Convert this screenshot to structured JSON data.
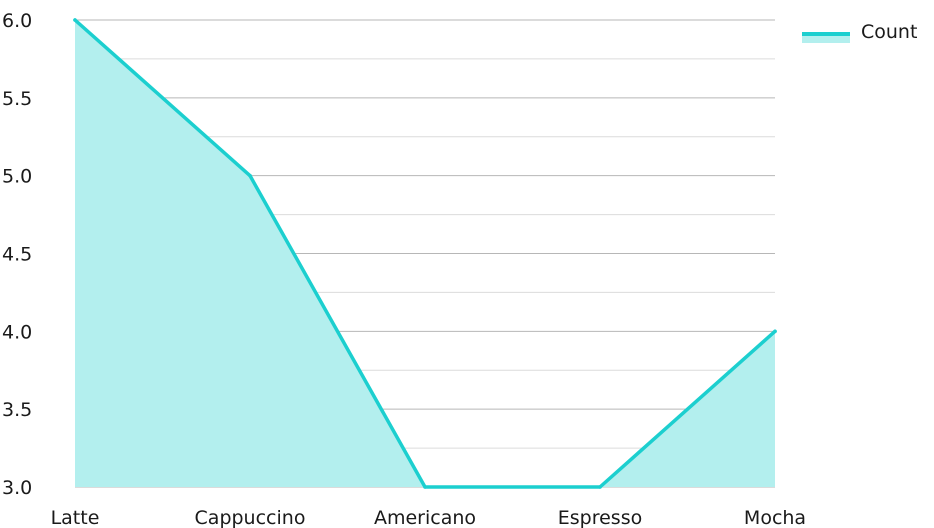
{
  "chart_data": {
    "type": "area",
    "categories": [
      "Latte",
      "Cappuccino",
      "Americano",
      "Espresso",
      "Mocha"
    ],
    "series": [
      {
        "name": "Count",
        "values": [
          6.0,
          5.0,
          3.0,
          3.0,
          4.0
        ]
      }
    ],
    "ylim": [
      3.0,
      6.0
    ],
    "yticks": [
      "6.0",
      "5.5",
      "5.0",
      "4.5",
      "4.0",
      "3.5",
      "3.0"
    ],
    "grid": true,
    "legend_position": "top-right",
    "colors": {
      "line": "#1ccfcf",
      "fill": "#b3efee",
      "grid_major": "#b7b7b7",
      "grid_minor": "#dcdcdc"
    }
  },
  "legend": {
    "label": "Count"
  }
}
